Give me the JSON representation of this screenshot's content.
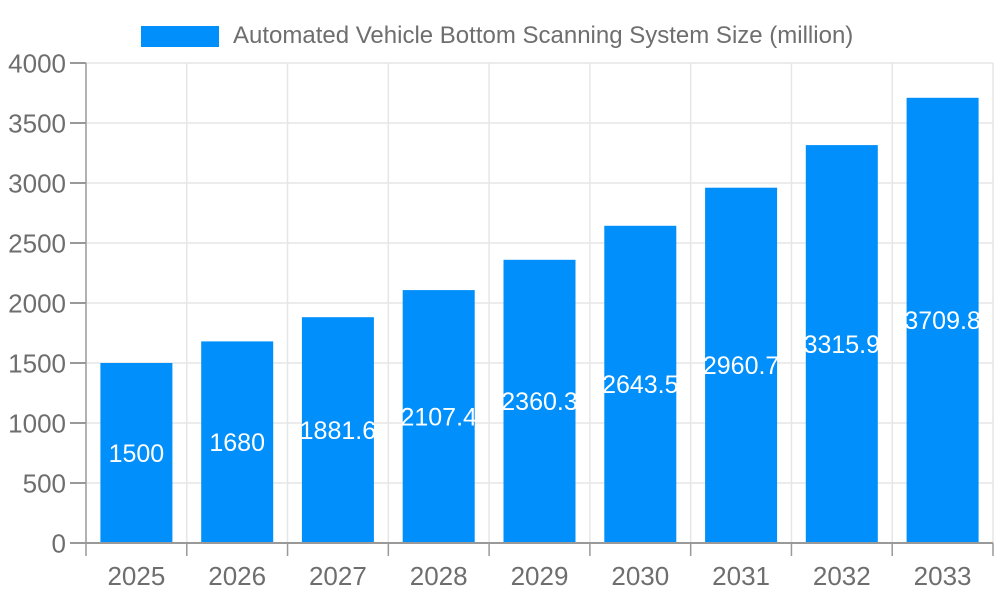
{
  "chart_data": {
    "type": "bar",
    "title": "Automated Vehicle Bottom Scanning System Size (million)",
    "categories": [
      "2025",
      "2026",
      "2027",
      "2028",
      "2029",
      "2030",
      "2031",
      "2032",
      "2033"
    ],
    "values": [
      1500,
      1680,
      1881.6,
      2107.4,
      2360.3,
      2643.5,
      2960.7,
      3315.9,
      3709.8
    ],
    "value_labels": [
      "1500",
      "1680",
      "1881.6",
      "2107.4",
      "2360.3",
      "2643.5",
      "2960.7",
      "3315.9",
      "3709.8"
    ],
    "xlabel": "",
    "ylabel": "",
    "ylim": [
      0,
      4000
    ],
    "ytick_step": 500,
    "ytick_labels": [
      "0",
      "500",
      "1000",
      "1500",
      "2000",
      "2500",
      "3000",
      "3500",
      "4000"
    ],
    "grid": true,
    "legend_position": "top",
    "colors": {
      "bar": "#008FFB",
      "grid": "#e6e6e6",
      "axis": "#999999",
      "tick": "#999999",
      "axis_label": "#6e6e6e",
      "value_label": "#ffffff",
      "background": "#ffffff"
    }
  }
}
